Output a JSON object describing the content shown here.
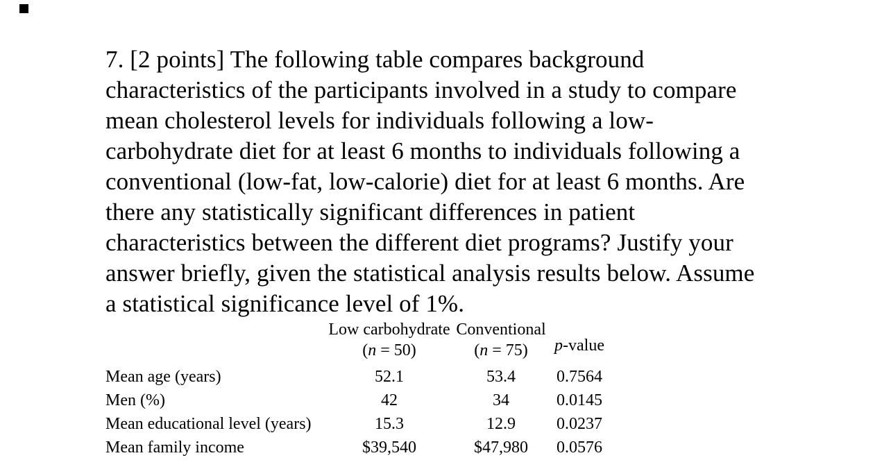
{
  "page": {
    "background_color": "#ffffff",
    "text_color": "#000000"
  },
  "question": {
    "full_text": "7. [2 points] The following table compares background characteristics of the participants involved in a study to compare mean cholesterol levels for individuals following a low-carbohydrate diet for at least 6 months to individuals following a conventional (low-fat, low-calorie) diet for at least 6 months. Are there any statistically significant differences in patient characteristics between the different diet programs? Justify your answer briefly, given the statistical analysis results below. Assume a statistical significance level of 1%.",
    "lines": [
      "7. [2 points] The following table compares background",
      "characteristics of the participants involved in a study to compare",
      "mean cholesterol levels for individuals following a low-",
      "carbohydrate diet for at least 6 months to individuals following a",
      "conventional (low-fat, low-calorie) diet for at least 6 months. Are",
      "there any statistically significant differences in patient",
      "characteristics between the different diet programs? Justify your",
      "answer briefly, given the statistical analysis results below. Assume",
      "a statistical significance level of 1%."
    ]
  },
  "table": {
    "columns": [
      {
        "title": "Low carbohydrate",
        "sub_open": "(",
        "sub_var": "n",
        "sub_rest": " = 50)"
      },
      {
        "title": "Conventional",
        "sub_open": "(",
        "sub_var": "n",
        "sub_rest": " = 75)"
      },
      {
        "p_italic": "p",
        "p_rest": "-value"
      }
    ],
    "rows": [
      {
        "label": "Mean age (years)",
        "low_carbohydrate": "52.1",
        "conventional": "53.4",
        "p_value": "0.7564"
      },
      {
        "label": "Men (%)",
        "low_carbohydrate": "42",
        "conventional": "34",
        "p_value": "0.0145"
      },
      {
        "label": "Mean educational level (years)",
        "low_carbohydrate": "15.3",
        "conventional": "12.9",
        "p_value": "0.0237"
      },
      {
        "label": "Mean family income",
        "low_carbohydrate": "$39,540",
        "conventional": "$47,980",
        "p_value": "0.0576"
      }
    ]
  }
}
